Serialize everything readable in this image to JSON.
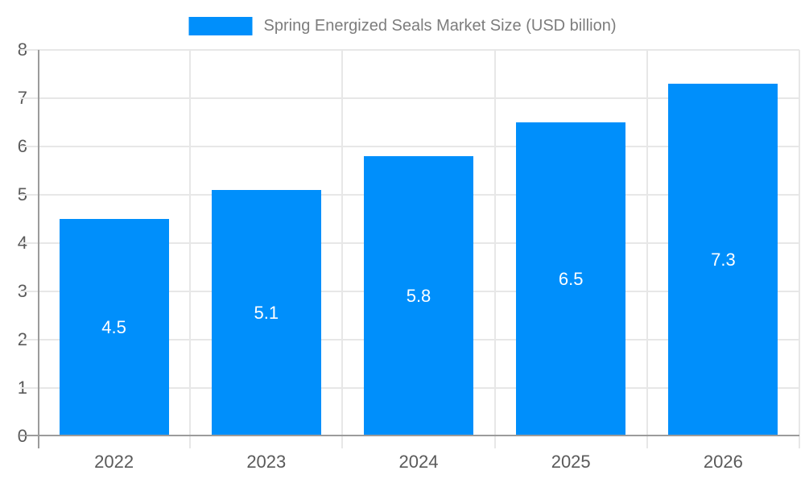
{
  "chart_data": {
    "type": "bar",
    "title": "Spring Energized Seals Market Size (USD billion)",
    "series_name": "Spring Energized Seals Market Size (USD billion)",
    "categories": [
      "2022",
      "2023",
      "2024",
      "2025",
      "2026"
    ],
    "values": [
      4.5,
      5.1,
      5.8,
      6.5,
      7.3
    ],
    "value_labels": [
      "4.5",
      "5.1",
      "5.8",
      "6.5",
      "7.3"
    ],
    "xlabel": "",
    "ylabel": "",
    "ylim": [
      0,
      8
    ],
    "yticks": [
      0,
      1,
      2,
      3,
      4,
      5,
      6,
      7,
      8
    ],
    "ytick_labels": [
      "0",
      "1",
      "2",
      "3",
      "4",
      "5",
      "6",
      "7",
      "8"
    ],
    "grid": true,
    "legend_position": "top"
  },
  "colors": {
    "bar": "#008FFB",
    "gridline": "#e7e7e7",
    "axis_line": "#9b9b9b",
    "tick_label": "#5a5a5a",
    "legend_text": "#7d7d7d",
    "value_label": "#ffffff",
    "background": "#ffffff"
  }
}
